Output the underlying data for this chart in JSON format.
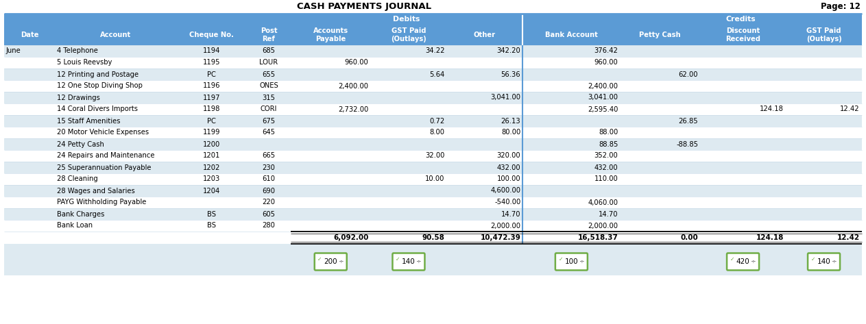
{
  "title": "CASH PAYMENTS JOURNAL",
  "page": "Page: 12",
  "header_bg": "#5b9bd5",
  "row_bg_alt": "#deeaf1",
  "row_bg_light": "#e9f2f8",
  "spinner_area_bg": "#deeaf1",
  "col_headers": [
    "Date",
    "Account",
    "Cheque No.",
    "Post\nRef",
    "Accounts\nPayable",
    "GST Paid\n(Outlays)",
    "Other",
    "Bank Account",
    "Petty Cash",
    "Discount\nReceived",
    "GST Paid\n(Outlays)"
  ],
  "col_aligns": [
    "left",
    "left",
    "center",
    "center",
    "right",
    "right",
    "right",
    "right",
    "right",
    "right",
    "right"
  ],
  "col_props": [
    0.052,
    0.125,
    0.072,
    0.045,
    0.082,
    0.078,
    0.078,
    0.1,
    0.082,
    0.088,
    0.078
  ],
  "rows": [
    [
      "June",
      "4 Telephone",
      "1194",
      "685",
      "",
      "34.22",
      "342.20",
      "376.42",
      "",
      "",
      ""
    ],
    [
      "",
      "5 Louis Reevsby",
      "1195",
      "LOUR",
      "960.00",
      "",
      "",
      "960.00",
      "",
      "",
      ""
    ],
    [
      "",
      "12 Printing and Postage",
      "PC",
      "655",
      "",
      "5.64",
      "56.36",
      "",
      "62.00",
      "",
      ""
    ],
    [
      "",
      "12 One Stop Diving Shop",
      "1196",
      "ONES",
      "2,400.00",
      "",
      "",
      "2,400.00",
      "",
      "",
      ""
    ],
    [
      "",
      "12 Drawings",
      "1197",
      "315",
      "",
      "",
      "3,041.00",
      "3,041.00",
      "",
      "",
      ""
    ],
    [
      "",
      "14 Coral Divers Imports",
      "1198",
      "CORI",
      "2,732.00",
      "",
      "",
      "2,595.40",
      "",
      "124.18",
      "12.42"
    ],
    [
      "",
      "15 Staff Amenities",
      "PC",
      "675",
      "",
      "0.72",
      "26.13",
      "",
      "26.85",
      "",
      ""
    ],
    [
      "",
      "20 Motor Vehicle Expenses",
      "1199",
      "645",
      "",
      "8.00",
      "80.00",
      "88.00",
      "",
      "",
      ""
    ],
    [
      "",
      "24 Petty Cash",
      "1200",
      "",
      "",
      "",
      "",
      "88.85",
      "-88.85",
      "",
      ""
    ],
    [
      "",
      "24 Repairs and Maintenance",
      "1201",
      "665",
      "",
      "32.00",
      "320.00",
      "352.00",
      "",
      "",
      ""
    ],
    [
      "",
      "25 Superannuation Payable",
      "1202",
      "230",
      "",
      "",
      "432.00",
      "432.00",
      "",
      "",
      ""
    ],
    [
      "",
      "28 Cleaning",
      "1203",
      "610",
      "",
      "10.00",
      "100.00",
      "110.00",
      "",
      "",
      ""
    ],
    [
      "",
      "28 Wages and Salaries",
      "1204",
      "690",
      "",
      "",
      "4,600.00",
      "",
      "",
      "",
      ""
    ],
    [
      "",
      "PAYG Withholding Payable",
      "",
      "220",
      "",
      "",
      "-540.00",
      "4,060.00",
      "",
      "",
      ""
    ],
    [
      "",
      "Bank Charges",
      "BS",
      "605",
      "",
      "",
      "14.70",
      "14.70",
      "",
      "",
      ""
    ],
    [
      "",
      "Bank Loan",
      "BS",
      "280",
      "",
      "",
      "2,000.00",
      "2,000.00",
      "",
      "",
      ""
    ]
  ],
  "totals": [
    "",
    "",
    "",
    "",
    "6,092.00",
    "90.58",
    "10,472.39",
    "16,518.37",
    "0.00",
    "124.18",
    "12.42"
  ],
  "spinner_cols": [
    4,
    5,
    7,
    9,
    10
  ],
  "spinner_vals": [
    "200",
    "140",
    "100",
    "420",
    "140"
  ]
}
